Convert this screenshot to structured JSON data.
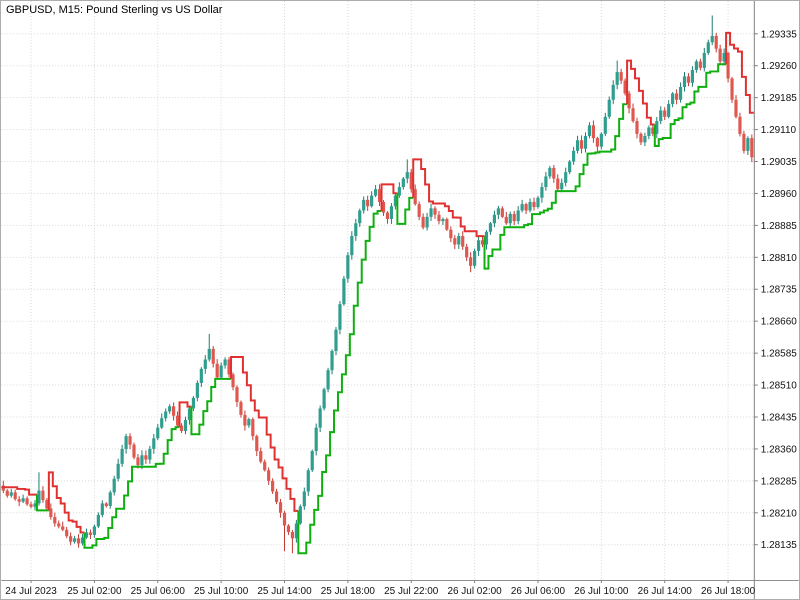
{
  "title": "GBPUSD, M15:  Pound Sterling vs US Dollar",
  "symbol": "GBPUSD",
  "timeframe": "M15",
  "colors": {
    "background": "#ffffff",
    "grid": "#d8d8d8",
    "bull_body": "#2f9e8f",
    "bull_wick": "#1d7d71",
    "bear_body": "#df5850",
    "bear_wick": "#c03a34",
    "axis_text": "#111111",
    "separator": "#808080"
  },
  "chart_data": {
    "type": "candlestick",
    "title": "GBPUSD, M15:  Pound Sterling vs US Dollar",
    "instrument": "GBPUSD",
    "interval_minutes": 15,
    "xlabel": "",
    "ylabel": "",
    "grid": true,
    "y_axis": {
      "min": 1.28052,
      "max": 1.29412,
      "tick_step": 0.00075,
      "ticks": [
        "1.29335",
        "1.29260",
        "1.29185",
        "1.29110",
        "1.29035",
        "1.28960",
        "1.28885",
        "1.28810",
        "1.28735",
        "1.28660",
        "1.28585",
        "1.28510",
        "1.28435",
        "1.28360",
        "1.28285",
        "1.28210",
        "1.28135"
      ]
    },
    "x_axis": {
      "labels": [
        {
          "text": "24 Jul 2023",
          "index": 7
        },
        {
          "text": "25 Jul 02:00",
          "index": 23
        },
        {
          "text": "25 Jul 06:00",
          "index": 39
        },
        {
          "text": "25 Jul 10:00",
          "index": 55
        },
        {
          "text": "25 Jul 14:00",
          "index": 71
        },
        {
          "text": "25 Jul 18:00",
          "index": 87
        },
        {
          "text": "25 Jul 22:00",
          "index": 103
        },
        {
          "text": "26 Jul 02:00",
          "index": 119
        },
        {
          "text": "26 Jul 06:00",
          "index": 135
        },
        {
          "text": "26 Jul 10:00",
          "index": 151
        },
        {
          "text": "26 Jul 14:00",
          "index": 167
        },
        {
          "text": "26 Jul 18:00",
          "index": 183
        }
      ]
    },
    "closes": [
      1.28262,
      1.2825,
      1.28258,
      1.28242,
      1.28236,
      1.28244,
      1.2823,
      1.28224,
      1.28232,
      1.28262,
      1.2824,
      1.2822,
      1.282,
      1.28185,
      1.28178,
      1.2817,
      1.28155,
      1.28142,
      1.2815,
      1.28138,
      1.28152,
      1.28164,
      1.28158,
      1.28178,
      1.28205,
      1.28232,
      1.28226,
      1.28258,
      1.2829,
      1.28325,
      1.2836,
      1.2839,
      1.2837,
      1.2834,
      1.28322,
      1.28345,
      1.28335,
      1.2836,
      1.28385,
      1.2841,
      1.28432,
      1.28448,
      1.2846,
      1.28438,
      1.28415,
      1.28402,
      1.28428,
      1.28455,
      1.2848,
      1.28515,
      1.28548,
      1.2857,
      1.28595,
      1.2856,
      1.28528,
      1.28556,
      1.2857,
      1.28535,
      1.28505,
      1.2847,
      1.2844,
      1.28415,
      1.2843,
      1.2839,
      1.28355,
      1.2833,
      1.2831,
      1.28285,
      1.2826,
      1.28235,
      1.2821,
      1.2818,
      1.28165,
      1.2815,
      1.28185,
      1.28225,
      1.2826,
      1.2831,
      1.28355,
      1.2841,
      1.28455,
      1.285,
      1.28545,
      1.2859,
      1.2864,
      1.287,
      1.2876,
      1.28815,
      1.2886,
      1.2889,
      1.2892,
      1.28945,
      1.2893,
      1.28955,
      1.2897,
      1.2894,
      1.28915,
      1.289,
      1.2893,
      1.28955,
      1.28975,
      1.28995,
      1.2901,
      1.2897,
      1.28935,
      1.28905,
      1.2888,
      1.28905,
      1.28925,
      1.2891,
      1.28895,
      1.289,
      1.28875,
      1.28855,
      1.2884,
      1.2886,
      1.28835,
      1.2881,
      1.2879,
      1.28825,
      1.2885,
      1.2884,
      1.2887,
      1.2889,
      1.2891,
      1.28925,
      1.28905,
      1.2889,
      1.28912,
      1.28895,
      1.2892,
      1.28935,
      1.2892,
      1.2894,
      1.28928,
      1.2895,
      1.28975,
      1.29,
      1.2902,
      1.28995,
      1.2897,
      1.28985,
      1.2901,
      1.29035,
      1.2906,
      1.29085,
      1.29065,
      1.29095,
      1.2912,
      1.2909,
      1.2907,
      1.291,
      1.2914,
      1.2918,
      1.29215,
      1.29245,
      1.29225,
      1.29195,
      1.2916,
      1.2913,
      1.291,
      1.2908,
      1.29095,
      1.29115,
      1.291,
      1.2913,
      1.29155,
      1.2914,
      1.2917,
      1.29195,
      1.2918,
      1.2921,
      1.29235,
      1.2922,
      1.2925,
      1.2927,
      1.29255,
      1.2929,
      1.29315,
      1.2933,
      1.293,
      1.2927,
      1.2929,
      1.2923,
      1.2918,
      1.2914,
      1.291,
      1.2906,
      1.2909,
      1.29045
    ],
    "wick_overrides": {
      "9": {
        "high": 1.28305
      },
      "19": {
        "low": 1.28128
      },
      "52": {
        "high": 1.2863
      },
      "71": {
        "low": 1.2812
      },
      "73": {
        "low": 1.28115
      },
      "102": {
        "high": 1.2904
      },
      "118": {
        "low": 1.28775
      },
      "155": {
        "high": 1.29272
      },
      "179": {
        "high": 1.29378
      }
    },
    "indicator": {
      "name": "trend step line",
      "window": 4,
      "initial_trend": "down",
      "initial_level": 1.2827,
      "up_color": "#0faf0f",
      "down_color": "#e03131",
      "line_width": 2
    }
  }
}
